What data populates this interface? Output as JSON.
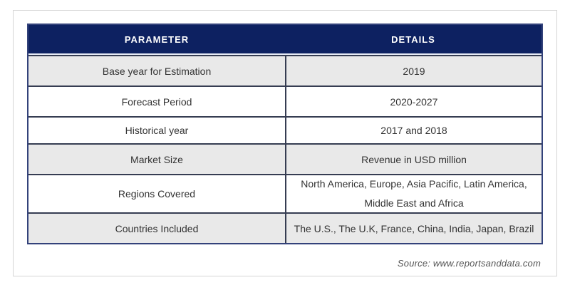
{
  "table": {
    "columns": [
      {
        "label": "PARAMETER"
      },
      {
        "label": "DETAILS"
      }
    ],
    "rows": [
      {
        "parameter": "Base year for Estimation",
        "details": "2019",
        "shaded": true
      },
      {
        "parameter": "Forecast Period",
        "details": "2020-2027",
        "shaded": false
      },
      {
        "parameter": "Historical year",
        "details": "2017 and 2018",
        "shaded": false
      },
      {
        "parameter": "Market Size",
        "details": "Revenue in USD million",
        "shaded": true
      },
      {
        "parameter": "Regions Covered",
        "details": "North America, Europe, Asia Pacific, Latin America,\nMiddle East and Africa",
        "shaded": false
      },
      {
        "parameter": "Countries Included",
        "details": "The U.S., The U.K, France, China, India, Japan, Brazil",
        "shaded": true
      }
    ]
  },
  "footer": {
    "source": "Source: www.reportsanddata.com"
  },
  "colors": {
    "header_bg": "#0d2161",
    "header_text": "#ffffff",
    "shaded_row_bg": "#e9e9e9",
    "row_border": "#363d52",
    "outer_border": "#33427a",
    "body_text": "#333333",
    "source_text": "#555555",
    "frame_border": "#d6d6d6"
  }
}
